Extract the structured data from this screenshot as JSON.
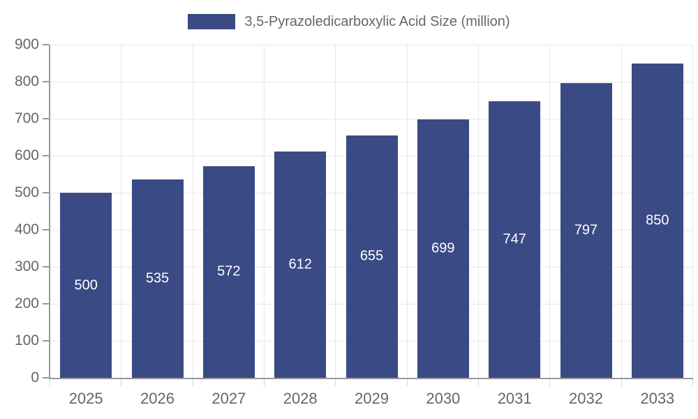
{
  "legend": {
    "label": "3,5-Pyrazoledicarboxylic Acid Size (million)"
  },
  "chart_data": {
    "type": "bar",
    "title": "3,5-Pyrazoledicarboxylic Acid Size (million)",
    "categories": [
      "2025",
      "2026",
      "2027",
      "2028",
      "2029",
      "2030",
      "2031",
      "2032",
      "2033"
    ],
    "values": [
      500,
      535,
      572,
      612,
      655,
      699,
      747,
      797,
      850
    ],
    "series_name": "3,5-Pyrazoledicarboxylic Acid Size (million)",
    "xlabel": "",
    "ylabel": "",
    "ylim": [
      0,
      900
    ],
    "ytick_step": 100,
    "yticks": [
      0,
      100,
      200,
      300,
      400,
      500,
      600,
      700,
      800,
      900
    ],
    "grid": true,
    "value_labels": "inside-center",
    "legend_position": "top-center"
  },
  "colors": {
    "bar": "#3a4a84",
    "axis": "#999999",
    "grid": "#e6e6e6",
    "category_tick": "#d5d5d5",
    "text": "#666666",
    "value_label": "#ffffff",
    "background": "#ffffff"
  }
}
